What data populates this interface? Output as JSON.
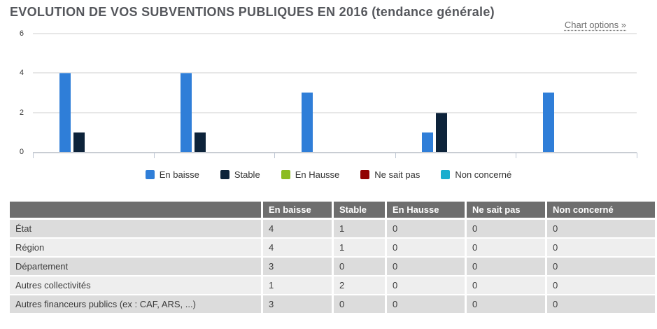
{
  "title": "EVOLUTION DE VOS SUBVENTIONS PUBLIQUES EN 2016 (tendance générale)",
  "chart_options_label": "Chart options »",
  "chart_data": {
    "type": "bar",
    "title": "EVOLUTION DE VOS SUBVENTIONS PUBLIQUES EN 2016 (tendance générale)",
    "categories": [
      "État",
      "Région",
      "Département",
      "Autres collectivités",
      "Autres financeurs publics (ex : CAF, ARS, ...)"
    ],
    "series": [
      {
        "name": "En baisse",
        "color": "#2f7ed8",
        "values": [
          4,
          4,
          3,
          1,
          3
        ]
      },
      {
        "name": "Stable",
        "color": "#0d233a",
        "values": [
          1,
          1,
          0,
          2,
          0
        ]
      },
      {
        "name": "En Hausse",
        "color": "#8bbc21",
        "values": [
          0,
          0,
          0,
          0,
          0
        ]
      },
      {
        "name": "Ne sait pas",
        "color": "#910000",
        "values": [
          0,
          0,
          0,
          0,
          0
        ]
      },
      {
        "name": "Non concerné",
        "color": "#1aadce",
        "values": [
          0,
          0,
          0,
          0,
          0
        ]
      }
    ],
    "xlabel": "",
    "ylabel": "",
    "ylim": [
      0,
      6
    ],
    "yticks": [
      0,
      2,
      4,
      6
    ],
    "grid": true,
    "legend_position": "bottom"
  },
  "table": {
    "corner_label": "",
    "columns": [
      "En baisse",
      "Stable",
      "En Hausse",
      "Ne sait pas",
      "Non concerné"
    ],
    "rows": [
      {
        "label": "État",
        "values": [
          4,
          1,
          0,
          0,
          0
        ]
      },
      {
        "label": "Région",
        "values": [
          4,
          1,
          0,
          0,
          0
        ]
      },
      {
        "label": "Département",
        "values": [
          3,
          0,
          0,
          0,
          0
        ]
      },
      {
        "label": "Autres collectivités",
        "values": [
          1,
          2,
          0,
          0,
          0
        ]
      },
      {
        "label": "Autres financeurs publics (ex : CAF, ARS, ...)",
        "values": [
          3,
          0,
          0,
          0,
          0
        ]
      }
    ]
  }
}
